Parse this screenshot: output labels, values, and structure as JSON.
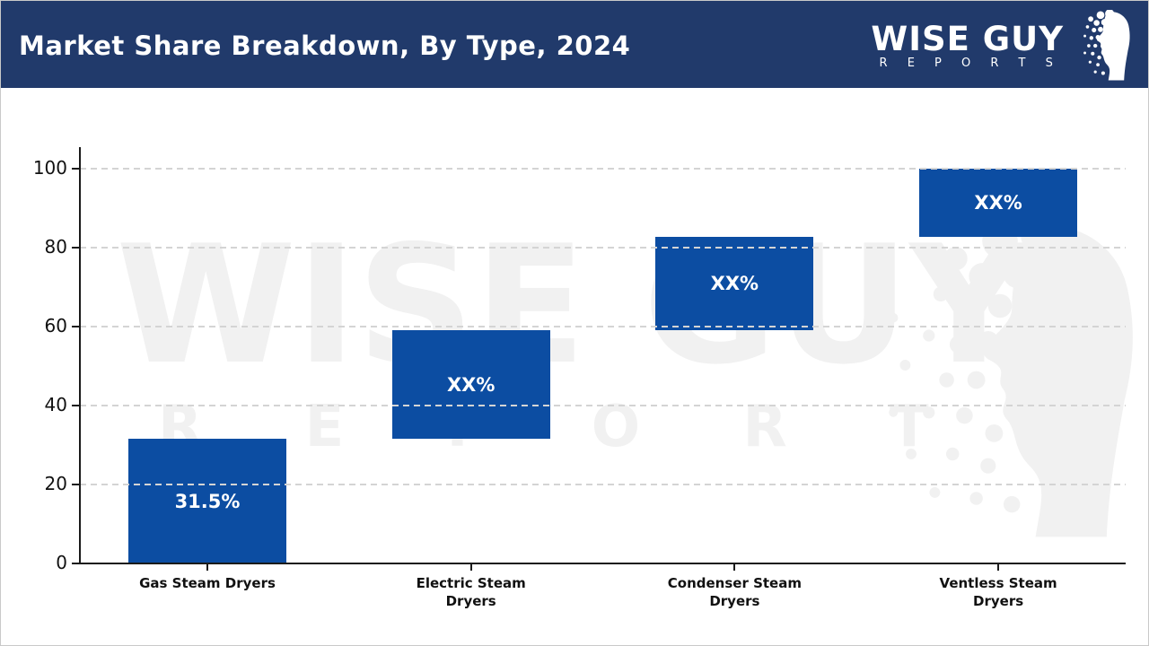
{
  "header": {
    "title": "Market Share Breakdown, By Type, 2024",
    "logo": {
      "line1": "WISE GUY",
      "line2": "REPORTS"
    }
  },
  "watermark": {
    "line1": "WISE GUY",
    "line2": "REPORTS"
  },
  "chart_data": {
    "type": "bar",
    "subtype": "waterfall",
    "title": "Market Share Breakdown, By Type, 2024",
    "categories": [
      "Gas Steam Dryers",
      "Electric Steam Dryers",
      "Condenser Steam Dryers",
      "Ventless Steam Dryers"
    ],
    "category_lines": [
      [
        "Gas Steam Dryers"
      ],
      [
        "Electric Steam",
        "Dryers"
      ],
      [
        "Condenser Steam",
        "Dryers"
      ],
      [
        "Ventless Steam",
        "Dryers"
      ]
    ],
    "segments": [
      {
        "category": "Gas Steam Dryers",
        "start": 0,
        "end": 31.5,
        "label": "31.5%"
      },
      {
        "category": "Electric Steam Dryers",
        "start": 31.5,
        "end": 59,
        "label": "XX%"
      },
      {
        "category": "Condenser Steam Dryers",
        "start": 59,
        "end": 82.8,
        "label": "XX%"
      },
      {
        "category": "Ventless Steam Dryers",
        "start": 82.8,
        "end": 100,
        "label": "XX%"
      }
    ],
    "xlabel": "",
    "ylabel": "",
    "ylim": [
      0,
      105
    ],
    "yticks": [
      0,
      20,
      40,
      60,
      80,
      100
    ],
    "grid": true,
    "legend": "none",
    "bar_color": "#0c4da2",
    "bar_label_color": "#ffffff",
    "axis_color": "#1a1a1a",
    "grid_color": "#d4d4d4",
    "header_bg": "#213a6b",
    "watermark_color": "#f1f1f1"
  }
}
